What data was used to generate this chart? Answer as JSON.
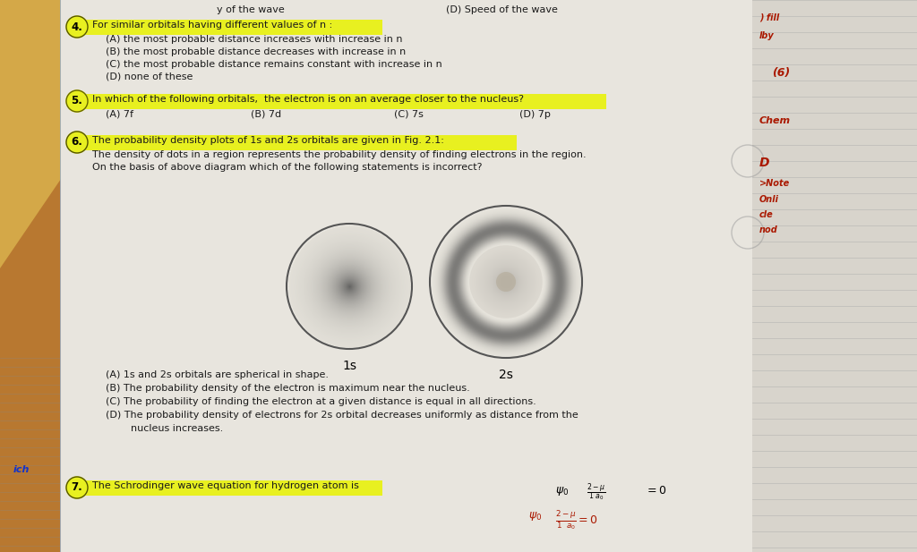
{
  "page_color": "#e8e5de",
  "left_bg": "#c8955a",
  "left_bg2": "#d4a060",
  "right_bg": "#d4d0c8",
  "highlight_yellow": "#e8f020",
  "text_color": "#1a1a1a",
  "red_text_color": "#aa1800",
  "circle_color": "#cc3300",
  "q4_number": "4.",
  "q4_text": "For similar orbitals having different values of n :",
  "q4_a": "(A) the most probable distance increases with increase in n",
  "q4_b": "(B) the most probable distance decreases with increase in n",
  "q4_c": "(C) the most probable distance remains constant with increase in n",
  "q4_d": "(D) none of these",
  "q5_number": "5.",
  "q5_text": "In which of the following orbitals,  the electron is on an average closer to the nucleus?",
  "q5_a": "(A) 7f",
  "q5_b": "(B) 7d",
  "q5_c": "(C) 7s",
  "q5_d": "(D) 7p",
  "q6_number": "6.",
  "q6_text_highlighted": "The probability density plots of 1s and 2s orbitals are given in Fig. 2.1:",
  "q6_text2": "The density of dots in a region represents the probability density of finding electrons in the region.",
  "q6_text3": "On the basis of above diagram which of the following statements is incorrect?",
  "q6_a": "(A) 1s and 2s orbitals are spherical in shape.",
  "q6_b": "(B) The probability density of the electron is maximum near the nucleus.",
  "q6_c": "(C) The probability of finding the electron at a given distance is equal in all directions.",
  "q6_d": "(D) The probability density of electrons for 2s orbital decreases uniformly as distance from the",
  "q6_d2": "        nucleus increases.",
  "label_1s": "1s",
  "label_2s": "2s",
  "q7_number": "7.",
  "q7_text": "The Schrodinger wave equation for hydrogen atom is",
  "top_text_left": "y of the wave",
  "top_text_right": "(D) Speed of the wave",
  "figsize": [
    10.24,
    6.17
  ],
  "dpi": 100
}
